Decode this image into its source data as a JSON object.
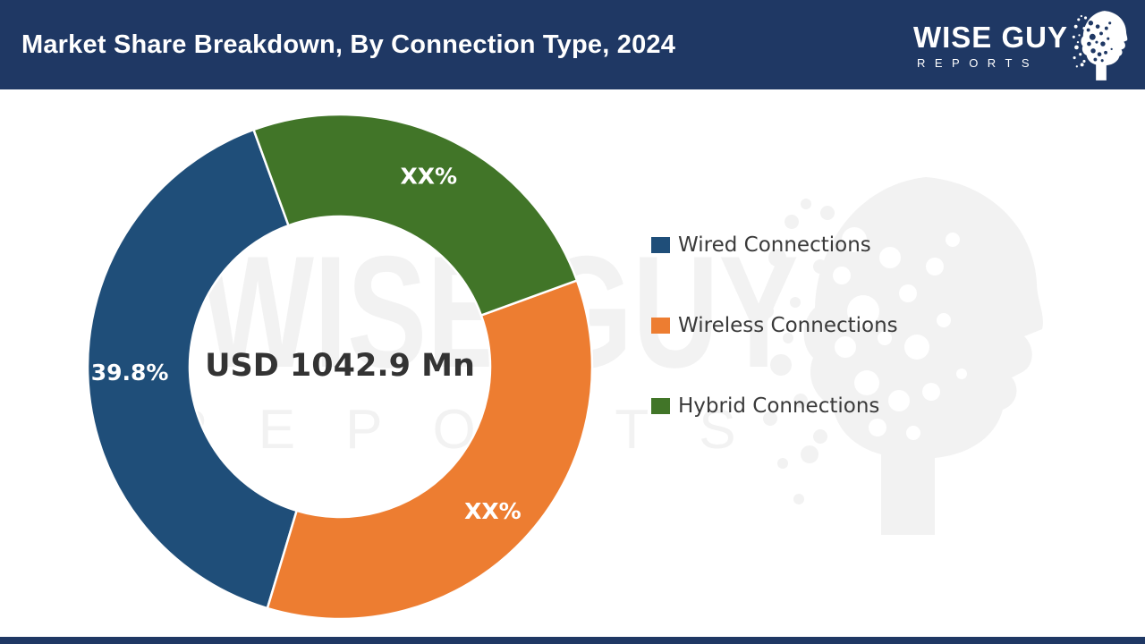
{
  "header": {
    "title": "Market Share Breakdown, By Connection Type, 2024",
    "bg_color": "#1f3864",
    "logo": {
      "brand": "WISE GUY",
      "sub": "REPORTS"
    }
  },
  "watermark": {
    "line1": "WISE GUY",
    "line2": "REPORTS"
  },
  "chart_data": {
    "type": "pie",
    "title": "Market Share Breakdown, By Connection Type, 2024",
    "donut": true,
    "center_label": "USD 1042.9 Mn",
    "start_angle_deg": 110,
    "direction": "counterclockwise",
    "legend_position": "right",
    "segments": [
      {
        "label": "Wired Connections",
        "value_pct": 39.8,
        "display_label": "39.8%",
        "color": "#1f4e79"
      },
      {
        "label": "Wireless Connections",
        "value_pct": 35.2,
        "display_label": "XX%",
        "color": "#ed7d31"
      },
      {
        "label": "Hybrid Connections",
        "value_pct": 25.0,
        "display_label": "XX%",
        "color": "#417528"
      }
    ]
  }
}
